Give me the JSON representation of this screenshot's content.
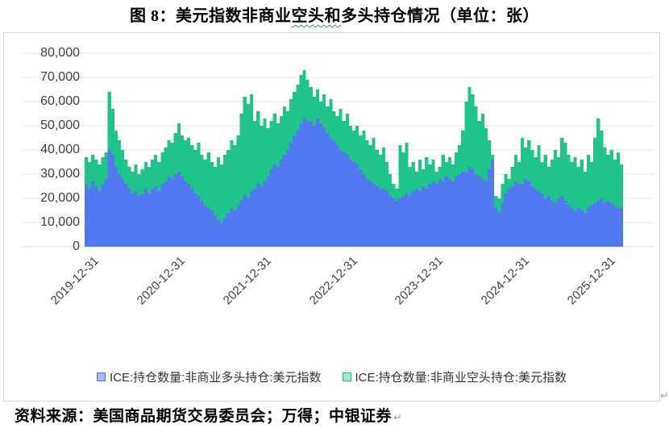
{
  "title": {
    "part1": "图 8：美元指数非商业",
    "part2_wavy_underlined": "空头和",
    "part3": "多头持仓情况（单位：张）"
  },
  "source": {
    "text": "资料来源：美国商品期货交易委员会；万得；中银证券",
    "paragraph_mark": "↵"
  },
  "legend": {
    "items": [
      {
        "label": "ICE:持仓数量:非商业多头持仓:美元指数",
        "swatch_fill": "#a5bbf7",
        "swatch_border": "#4d6ee3"
      },
      {
        "label": "ICE:持仓数量:非商业空头持仓:美元指数",
        "swatch_fill": "#9fe7cf",
        "swatch_border": "#25b487"
      }
    ]
  },
  "chart_data": {
    "type": "bar",
    "style": "overlaid-bars (green short series drawn behind, blue long series in front), weekly data rendered at ~2-week resolution",
    "title": "图 8：美元指数非商业空头和多头持仓情况（单位：张）",
    "xlabel": "",
    "ylabel": "",
    "ylim": [
      0,
      80000
    ],
    "y_tick_labels": [
      "80,000",
      "70,000",
      "60,000",
      "50,000",
      "40,000",
      "30,000",
      "20,000",
      "10,000",
      "0"
    ],
    "y_tick_values": [
      80000,
      70000,
      60000,
      50000,
      40000,
      30000,
      20000,
      10000,
      0
    ],
    "x_tick_labels": [
      "2019-12-31",
      "2020-12-31",
      "2021-12-31",
      "2022-12-31",
      "2023-12-31",
      "2024-12-31",
      "2025-12-31"
    ],
    "x_range_approx": [
      "2019-12-01",
      "2026-02-28"
    ],
    "grid": "horizontal only, light gray",
    "legend_position": "bottom center",
    "bar_colors": {
      "long_blue": "#5278f2",
      "short_green": "#1fc48a"
    },
    "series": [
      {
        "name": "ICE:持仓数量:非商业多头持仓:美元指数",
        "color": "#5278f2",
        "z": "front",
        "values": [
          26000,
          24000,
          27000,
          25000,
          23000,
          26000,
          28000,
          40000,
          38000,
          33000,
          30000,
          28000,
          26000,
          24000,
          22000,
          23000,
          21000,
          22000,
          24000,
          22000,
          24000,
          25000,
          23000,
          26000,
          27000,
          29000,
          28000,
          30000,
          31000,
          29000,
          27000,
          26000,
          24000,
          22000,
          21000,
          19000,
          17000,
          16000,
          15000,
          13000,
          11000,
          10000,
          12000,
          14000,
          16000,
          15000,
          17000,
          19000,
          21000,
          20000,
          23000,
          24000,
          26000,
          25000,
          27000,
          29000,
          32000,
          34000,
          33000,
          36000,
          38000,
          40000,
          43000,
          46000,
          48000,
          51000,
          53000,
          52000,
          52000,
          50000,
          53000,
          51000,
          49000,
          47000,
          45000,
          44000,
          42000,
          40000,
          39000,
          38000,
          36000,
          35000,
          34000,
          32000,
          30000,
          28000,
          27000,
          26000,
          25000,
          24000,
          24000,
          23000,
          21000,
          20000,
          19000,
          20000,
          21000,
          22000,
          21000,
          23000,
          24000,
          23000,
          25000,
          24000,
          26000,
          27000,
          26000,
          28000,
          27000,
          29000,
          28000,
          27000,
          29000,
          30000,
          31000,
          31000,
          33000,
          32000,
          30000,
          29000,
          28000,
          27000,
          32000,
          36000,
          16000,
          14000,
          18000,
          22000,
          24000,
          25000,
          27000,
          26000,
          26000,
          28000,
          27000,
          25000,
          24000,
          23000,
          22000,
          20000,
          21000,
          19000,
          18000,
          20000,
          21000,
          19000,
          17000,
          16000,
          15000,
          16000,
          15000,
          14000,
          16000,
          17000,
          18000,
          19000,
          20000,
          18000,
          19000,
          18000,
          17000,
          16000,
          16000
        ]
      },
      {
        "name": "ICE:持仓数量:非商业空头持仓:美元指数",
        "color": "#1fc48a",
        "z": "back",
        "values": [
          37000,
          35000,
          38000,
          36000,
          34000,
          37000,
          39000,
          64000,
          57000,
          48000,
          44000,
          40000,
          36000,
          33000,
          31000,
          34000,
          30000,
          32000,
          35000,
          33000,
          36000,
          38000,
          35000,
          39000,
          41000,
          44000,
          43000,
          47000,
          51000,
          46000,
          44000,
          45000,
          42000,
          40000,
          43000,
          38000,
          36000,
          39000,
          35000,
          33000,
          37000,
          34000,
          38000,
          40000,
          44000,
          42000,
          46000,
          55000,
          62000,
          59000,
          63000,
          52000,
          56000,
          50000,
          53000,
          49000,
          52000,
          55000,
          51000,
          54000,
          58000,
          56000,
          61000,
          64000,
          67000,
          71000,
          73000,
          69000,
          66000,
          62000,
          65000,
          60000,
          63000,
          58000,
          61000,
          56000,
          54000,
          57000,
          52000,
          55000,
          50000,
          48000,
          50000,
          46000,
          48000,
          44000,
          42000,
          45000,
          40000,
          38000,
          41000,
          35000,
          30000,
          26000,
          24000,
          42000,
          39000,
          43000,
          33000,
          35000,
          31000,
          36000,
          32000,
          37000,
          34000,
          36000,
          31000,
          33000,
          38000,
          35000,
          37000,
          34000,
          39000,
          42000,
          48000,
          60000,
          66000,
          63000,
          58000,
          52000,
          55000,
          49000,
          44000,
          38000,
          21000,
          20000,
          26000,
          30000,
          28000,
          33000,
          38000,
          35000,
          45000,
          41000,
          44000,
          40000,
          37000,
          42000,
          35000,
          38000,
          33000,
          36000,
          40000,
          37000,
          45000,
          43000,
          38000,
          35000,
          37000,
          33000,
          36000,
          31000,
          38000,
          35000,
          45000,
          53000,
          48000,
          41000,
          38000,
          40000,
          36000,
          39000,
          34000
        ]
      }
    ]
  }
}
